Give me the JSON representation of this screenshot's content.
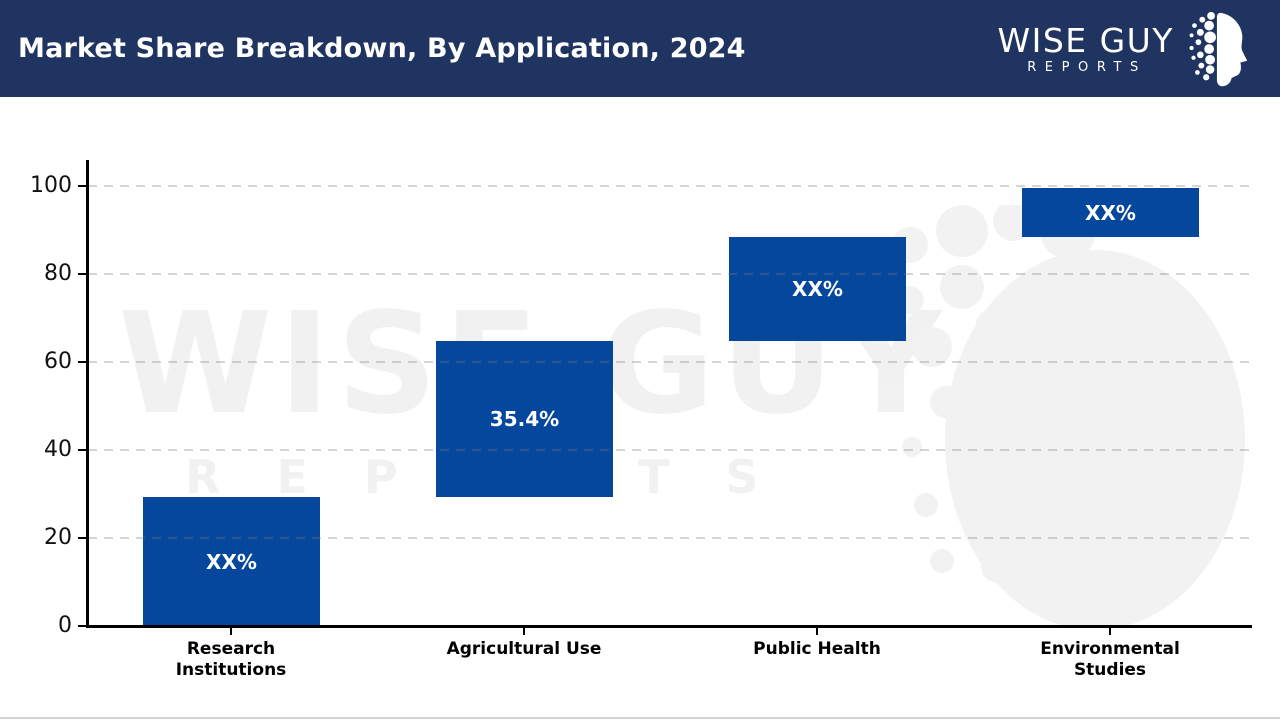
{
  "header": {
    "title": "Market Share Breakdown, By Application, 2024",
    "bg_color": "#1f3460",
    "logo": {
      "wordmark": "WISE GUY",
      "subtext": "REPORTS"
    }
  },
  "watermark": {
    "wordmark": "WISE GUY",
    "subtext": "REPORTS"
  },
  "chart_data": {
    "type": "bar",
    "variant": "waterfall (floating stacked segments)",
    "title": "Market Share Breakdown, By Application, 2024",
    "categories": [
      "Research Institutions",
      "Agricultural Use",
      "Public Health",
      "Environmental Studies"
    ],
    "category_label_lines": [
      [
        "Research",
        "Institutions"
      ],
      [
        "Agricultural Use"
      ],
      [
        "Public Health"
      ],
      [
        "Environmental",
        "Studies"
      ]
    ],
    "segments_pct": [
      [
        0,
        29.3
      ],
      [
        29.3,
        64.7
      ],
      [
        64.7,
        88.4
      ],
      [
        88.4,
        99.5
      ]
    ],
    "segment_sizes_pct": [
      29.3,
      35.4,
      23.7,
      11.1
    ],
    "bar_labels": [
      "XX%",
      "35.4%",
      "XX%",
      "XX%"
    ],
    "y_ticks": [
      0,
      20,
      40,
      60,
      80,
      100
    ],
    "ylim": [
      0,
      107
    ],
    "xlabel": "",
    "ylabel": "",
    "legend": "none",
    "grid": {
      "horizontal": "dashed",
      "color": "#d9d9d9"
    },
    "bar_color": "#04479c",
    "bar_label_color": "#ffffff"
  }
}
